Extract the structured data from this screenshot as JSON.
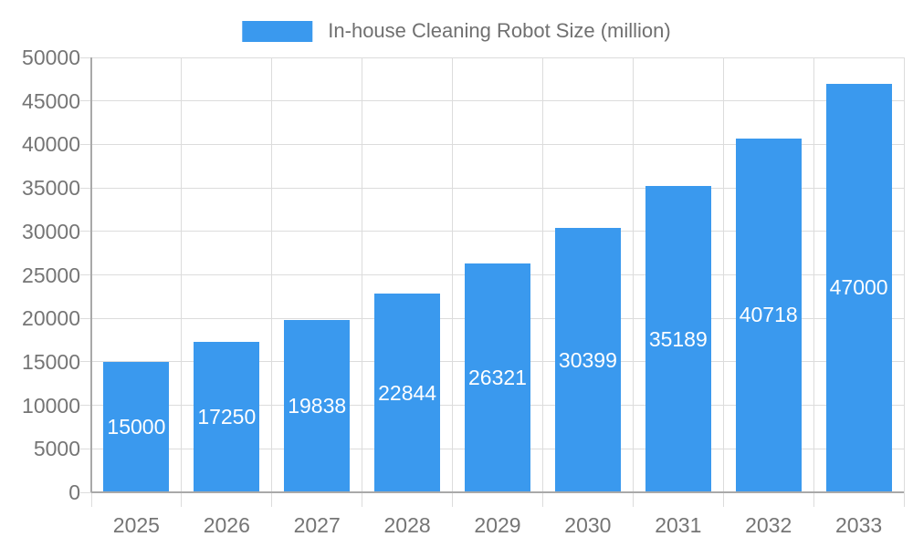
{
  "chart_data": {
    "type": "bar",
    "title": "In-house Cleaning Robot Size (million)",
    "legend": {
      "label": "In-house Cleaning Robot Size (million)",
      "position": "top-center"
    },
    "categories": [
      "2025",
      "2026",
      "2027",
      "2028",
      "2029",
      "2030",
      "2031",
      "2032",
      "2033"
    ],
    "series": [
      {
        "name": "In-house Cleaning Robot Size (million)",
        "values": [
          15000,
          17250,
          19838,
          22844,
          26321,
          30399,
          35189,
          40718,
          47000
        ]
      }
    ],
    "value_labels": [
      "15000",
      "17250",
      "19838",
      "22844",
      "26321",
      "30399",
      "35189",
      "40718",
      "47000"
    ],
    "value_labels_position": "inside-center",
    "xlabel": "",
    "ylabel": "",
    "ylim": [
      0,
      50000
    ],
    "ytick_step": 5000,
    "ytick_labels": [
      "0",
      "5000",
      "10000",
      "15000",
      "20000",
      "25000",
      "30000",
      "35000",
      "40000",
      "45000",
      "50000"
    ],
    "grid": true,
    "colors": {
      "bar": "#3A99EE",
      "value_label": "#FFFFFF",
      "axis_text": "#757575",
      "gridline": "#DCDCDC",
      "axis_line": "#A9A9A9"
    }
  }
}
